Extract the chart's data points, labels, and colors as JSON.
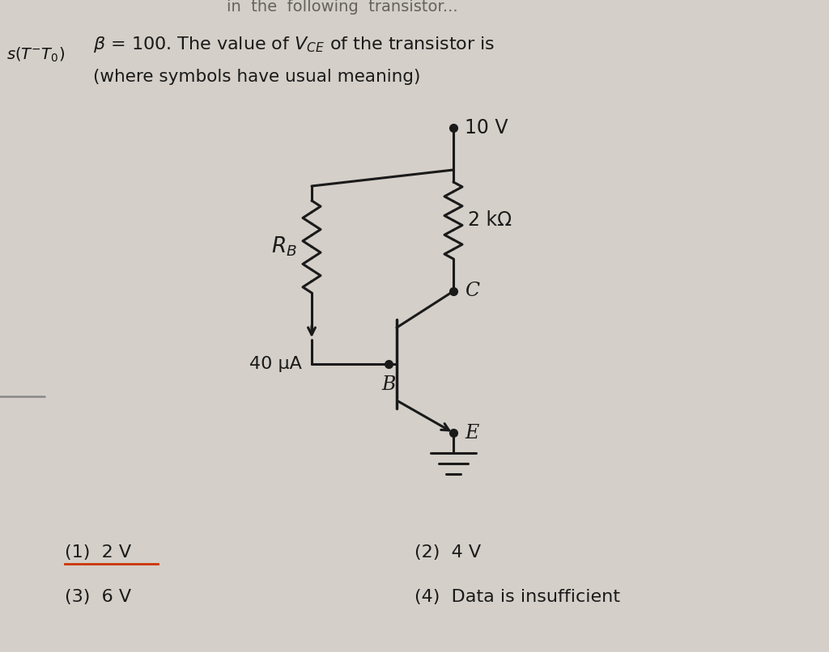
{
  "bg_color": "#d4cfc8",
  "text_color": "#1a1a1a",
  "line_color": "#1a1a1a",
  "label_10V": "10 V",
  "label_2kohm": "2 kΩ",
  "label_RB": "R",
  "label_RB_sub": "B",
  "label_40uA": "40 μA",
  "label_C": "C",
  "label_B": "B",
  "label_E": "E",
  "option1": "(1)  2 V",
  "option2": "(2)  4 V",
  "option3": "(3)  6 V",
  "option4": "(4)  Data is insufficient",
  "figsize": [
    10.24,
    8.06
  ],
  "dpi": 100
}
